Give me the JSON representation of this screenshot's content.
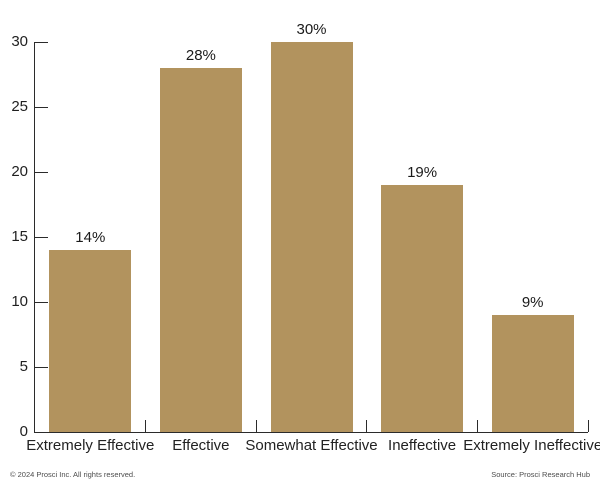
{
  "chart_data": {
    "type": "bar",
    "categories": [
      "Extremely Effective",
      "Effective",
      "Somewhat Effective",
      "Ineffective",
      "Extremely Ineffective"
    ],
    "values": [
      14,
      28,
      30,
      19,
      9
    ],
    "value_labels": [
      "14%",
      "28%",
      "30%",
      "19%",
      "9%"
    ],
    "title": "",
    "xlabel": "",
    "ylabel": "",
    "ylim": [
      0,
      30
    ],
    "yticks": [
      0,
      5,
      10,
      15,
      20,
      25,
      30
    ],
    "grid": false,
    "legend": "none",
    "bar_color": "#B2935E",
    "axis_color": "#2b2b2b",
    "label_color": "#1a1a1a"
  },
  "footer": {
    "copyright": "© 2024 Prosci Inc. All rights reserved.",
    "source": "Source: Prosci Research Hub"
  }
}
